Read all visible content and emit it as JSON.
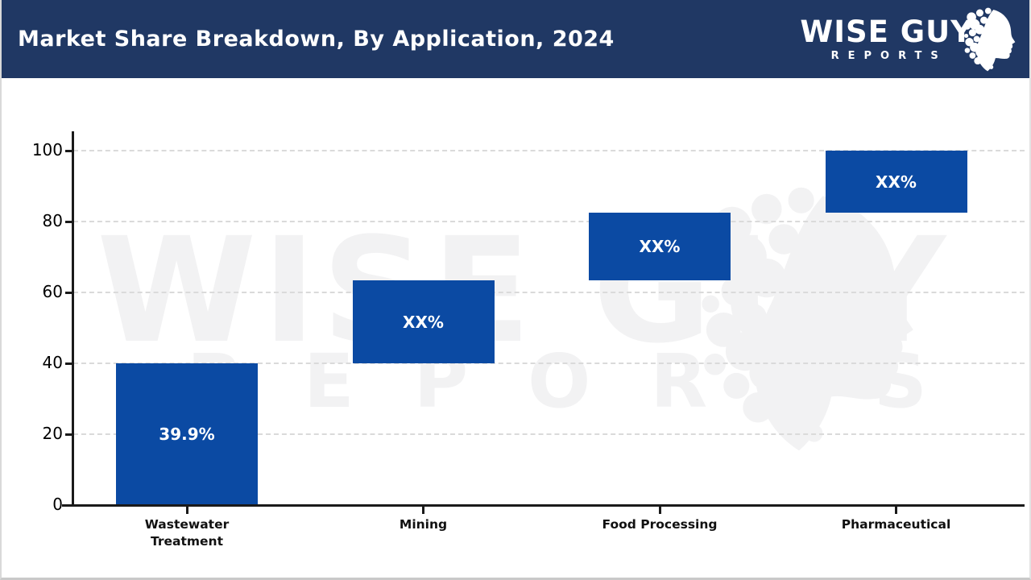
{
  "header": {
    "title": "Market Share Breakdown, By Application, 2024",
    "brand_name": "WISE GUY",
    "brand_sub": "REPORTS",
    "bg_color": "#203864"
  },
  "watermark": {
    "line1": "WISE GUY",
    "line2": "REPORTS"
  },
  "chart_data": {
    "type": "bar",
    "subtype": "waterfall",
    "title": "Market Share Breakdown, By Application, 2024",
    "categories": [
      "Wastewater\nTreatment",
      "Mining",
      "Food Processing",
      "Pharmaceutical"
    ],
    "series": [
      {
        "name": "Market Share %",
        "segments": [
          {
            "category": "Wastewater Treatment",
            "start": 0,
            "end": 39.9,
            "label": "39.9%"
          },
          {
            "category": "Mining",
            "start": 39.9,
            "end": 63.4,
            "label": "XX%"
          },
          {
            "category": "Food Processing",
            "start": 63.4,
            "end": 82.5,
            "label": "XX%"
          },
          {
            "category": "Pharmaceutical",
            "start": 82.5,
            "end": 100,
            "label": "XX%"
          }
        ]
      }
    ],
    "xlabel": "",
    "ylabel": "",
    "ylim": [
      0,
      100
    ],
    "yticks": [
      0,
      20,
      40,
      60,
      80,
      100
    ],
    "grid": "horizontal-dashed",
    "legend": "none",
    "bar_color": "#0b4aa3",
    "bar_label_color": "#ffffff",
    "axis_color": "#1a1a1a",
    "gridline_color": "#dadada"
  }
}
